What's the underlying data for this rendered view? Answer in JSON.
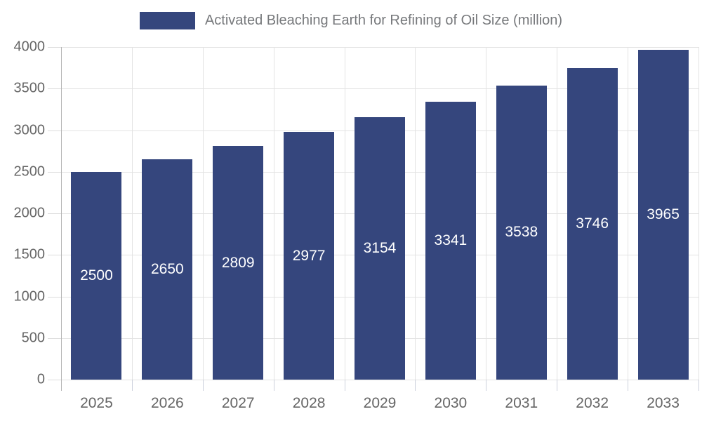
{
  "legend": {
    "label": "Activated Bleaching Earth for Refining of Oil Size (million)"
  },
  "chart_data": {
    "type": "bar",
    "title": "",
    "categories": [
      "2025",
      "2026",
      "2027",
      "2028",
      "2029",
      "2030",
      "2031",
      "2032",
      "2033"
    ],
    "series": [
      {
        "name": "Activated Bleaching Earth for Refining of Oil Size (million)",
        "values": [
          2500,
          2650,
          2809,
          2977,
          3154,
          3341,
          3538,
          3746,
          3965
        ]
      }
    ],
    "xlabel": "",
    "ylabel": "",
    "ylim": [
      0,
      4000
    ],
    "ytick_step": 500,
    "yticks": [
      0,
      500,
      1000,
      1500,
      2000,
      2500,
      3000,
      3500,
      4000
    ],
    "grid": true,
    "legend_position": "top-center",
    "value_labels": "inside-center"
  },
  "colors": {
    "background": "#ffffff",
    "bar": "#35467d",
    "gridline": "#e3e3e3",
    "axis_line": "#b6b6b6",
    "x_tick": "#ccd1dc",
    "y_tick": "#dcdcdc",
    "axis_text": "#666666",
    "legend_text": "#77797c",
    "value_label_text": "#ffffff"
  }
}
